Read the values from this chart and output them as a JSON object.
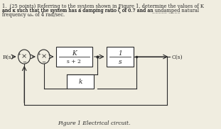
{
  "title_text": "1.  (25 points) Referring to the system shown in Figure 1, determine the values of K\nand k such that the system has a damping ratio ζ of 0.7 and an undamped natural\nfrequency ωₙ of 4 rad/sec.",
  "figure_caption": "Figure 1 Electrical circuit.",
  "block1_top": "K",
  "block1_bot": "s + 2",
  "block2_top": "1",
  "block2_bot": "s",
  "feedback_label": "k",
  "R_label": "R(s)",
  "C_label": "C(s)",
  "bg_color": "#f0ede0",
  "text_color": "#2a2a2a",
  "box_color": "#ffffff",
  "line_color": "#2a2a2a"
}
